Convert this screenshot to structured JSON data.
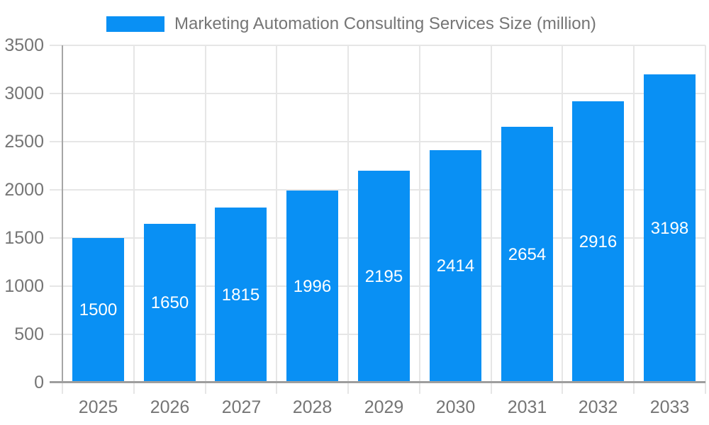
{
  "legend": {
    "label": "Marketing Automation Consulting Services Size (million)"
  },
  "chart_data": {
    "type": "bar",
    "title": "Marketing Automation Consulting Services Size (million)",
    "series_name": "Marketing Automation Consulting Services Size (million)",
    "categories": [
      "2025",
      "2026",
      "2027",
      "2028",
      "2029",
      "2030",
      "2031",
      "2032",
      "2033"
    ],
    "values": [
      1500,
      1650,
      1815,
      1996,
      2195,
      2414,
      2654,
      2916,
      3198
    ],
    "bar_value_labels": [
      "1500",
      "1650",
      "1815",
      "1996",
      "2195",
      "2414",
      "2654",
      "2916",
      "3198"
    ],
    "xlabel": "",
    "ylabel": "",
    "ylim": [
      0,
      3500
    ],
    "y_ticks": [
      0,
      500,
      1000,
      1500,
      2000,
      2500,
      3000,
      3500
    ],
    "y_tick_labels": [
      "0",
      "500",
      "1000",
      "1500",
      "2000",
      "2500",
      "3000",
      "3500"
    ],
    "grid": true,
    "legend_position": "top-center",
    "value_label_position": "inside-middle",
    "colors": {
      "bar": "#0990F4",
      "bar_label": "#ffffff",
      "axis_text": "#757575",
      "grid_line": "#e6e6e6",
      "axis_line": "#a6a6a6",
      "baseline": "#9e9e9e",
      "background": "#ffffff"
    }
  }
}
